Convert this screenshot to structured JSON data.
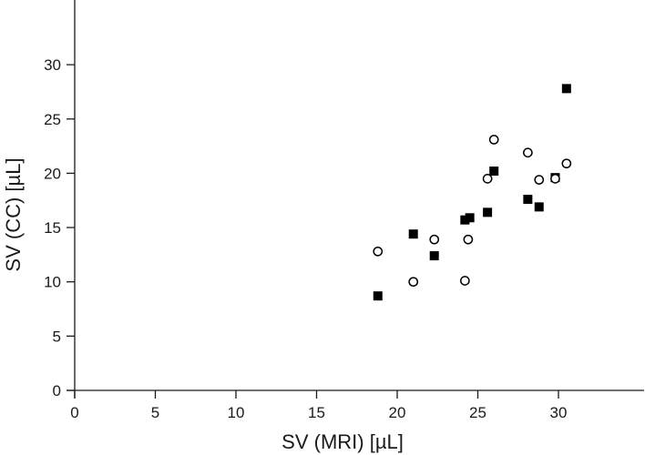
{
  "chart_data": {
    "type": "scatter",
    "title": "",
    "xlabel": "SV (MRI) [µL]",
    "ylabel": "SV (CC) [µL]",
    "xlim": [
      0,
      35
    ],
    "ylim": [
      0,
      35
    ],
    "xticks": [
      0,
      5,
      10,
      15,
      20,
      25,
      30
    ],
    "yticks": [
      0,
      5,
      10,
      15,
      20,
      25,
      30
    ],
    "grid": false,
    "legend": "none",
    "series": [
      {
        "marker": "filled-square",
        "color": "#000000",
        "points": [
          {
            "x": 18.8,
            "y": 8.7
          },
          {
            "x": 21.0,
            "y": 14.4
          },
          {
            "x": 22.3,
            "y": 12.4
          },
          {
            "x": 24.2,
            "y": 15.7
          },
          {
            "x": 24.5,
            "y": 15.9
          },
          {
            "x": 25.6,
            "y": 16.4
          },
          {
            "x": 26.0,
            "y": 20.2
          },
          {
            "x": 28.1,
            "y": 17.6
          },
          {
            "x": 28.8,
            "y": 16.9
          },
          {
            "x": 29.8,
            "y": 19.6
          },
          {
            "x": 30.5,
            "y": 27.8
          }
        ]
      },
      {
        "marker": "open-circle",
        "color": "#000000",
        "points": [
          {
            "x": 18.8,
            "y": 12.8
          },
          {
            "x": 21.0,
            "y": 10.0
          },
          {
            "x": 22.3,
            "y": 13.9
          },
          {
            "x": 24.2,
            "y": 10.1
          },
          {
            "x": 24.4,
            "y": 13.9
          },
          {
            "x": 25.6,
            "y": 19.5
          },
          {
            "x": 26.0,
            "y": 23.1
          },
          {
            "x": 28.1,
            "y": 21.9
          },
          {
            "x": 28.8,
            "y": 19.4
          },
          {
            "x": 29.8,
            "y": 19.5
          },
          {
            "x": 30.5,
            "y": 20.9
          }
        ]
      }
    ]
  }
}
